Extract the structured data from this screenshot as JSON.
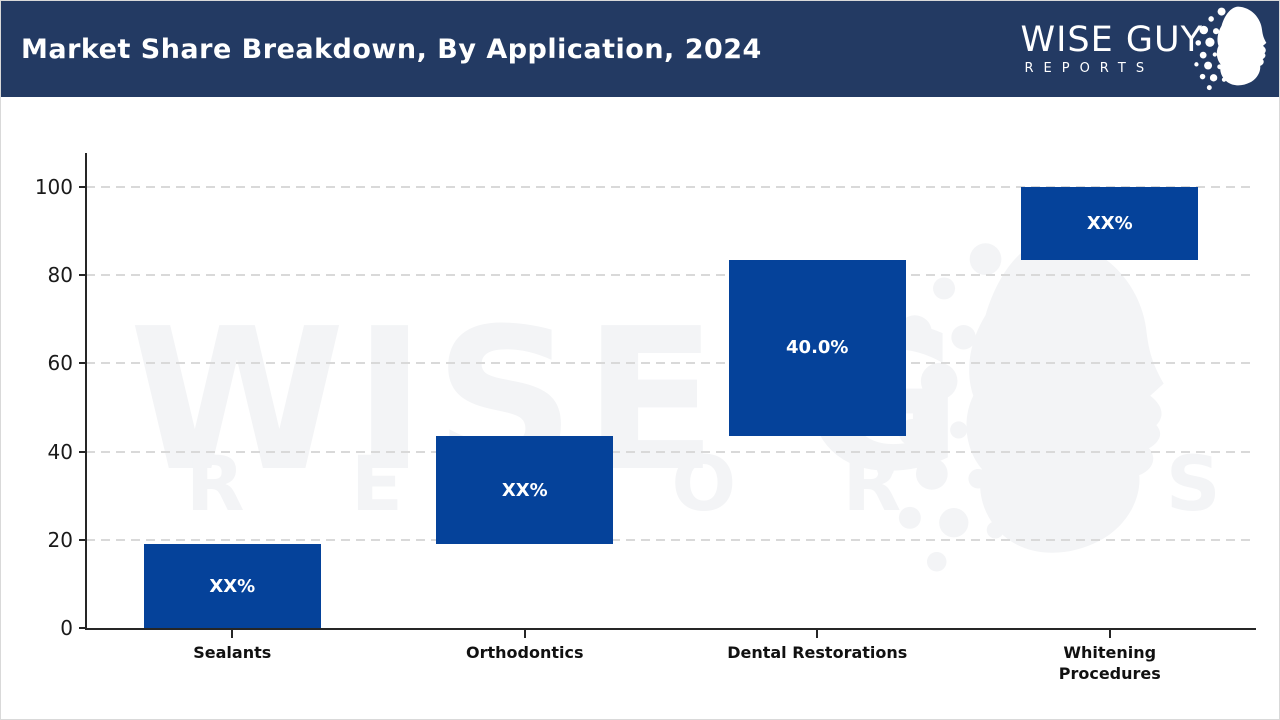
{
  "header": {
    "title": "Market Share Breakdown, By Application, 2024",
    "logo": {
      "line1": "WISE GUY",
      "line2": "REPORTS"
    },
    "bg_color": "#233a63"
  },
  "watermark": {
    "line1": "WISE GU",
    "line2": "R E P O R T S"
  },
  "chart_data": {
    "type": "bar",
    "subtype": "floating-waterfall",
    "title": "Market Share Breakdown, By Application, 2024",
    "categories": [
      "Sealants",
      "Orthodontics",
      "Dental Restorations",
      "Whitening Procedures"
    ],
    "series": [
      {
        "name": "Market share segment",
        "segments": [
          {
            "category": "Sealants",
            "start": 0,
            "end": 19,
            "label": "XX%"
          },
          {
            "category": "Orthodontics",
            "start": 19,
            "end": 43.5,
            "label": "XX%"
          },
          {
            "category": "Dental Restorations",
            "start": 43.5,
            "end": 83.5,
            "label": "40.0%"
          },
          {
            "category": "Whitening Procedures",
            "start": 83.5,
            "end": 100,
            "label": "XX%"
          }
        ]
      }
    ],
    "xlabel": "",
    "ylabel": "",
    "yticks": [
      0,
      20,
      40,
      60,
      80,
      100
    ],
    "ylim": [
      0,
      105
    ],
    "grid": "horizontal-dashed",
    "legend": "none",
    "bar_color": "#05429a",
    "axis_color": "#262626",
    "grid_color": "#d9d9d9",
    "label_color": "#ffffff"
  }
}
